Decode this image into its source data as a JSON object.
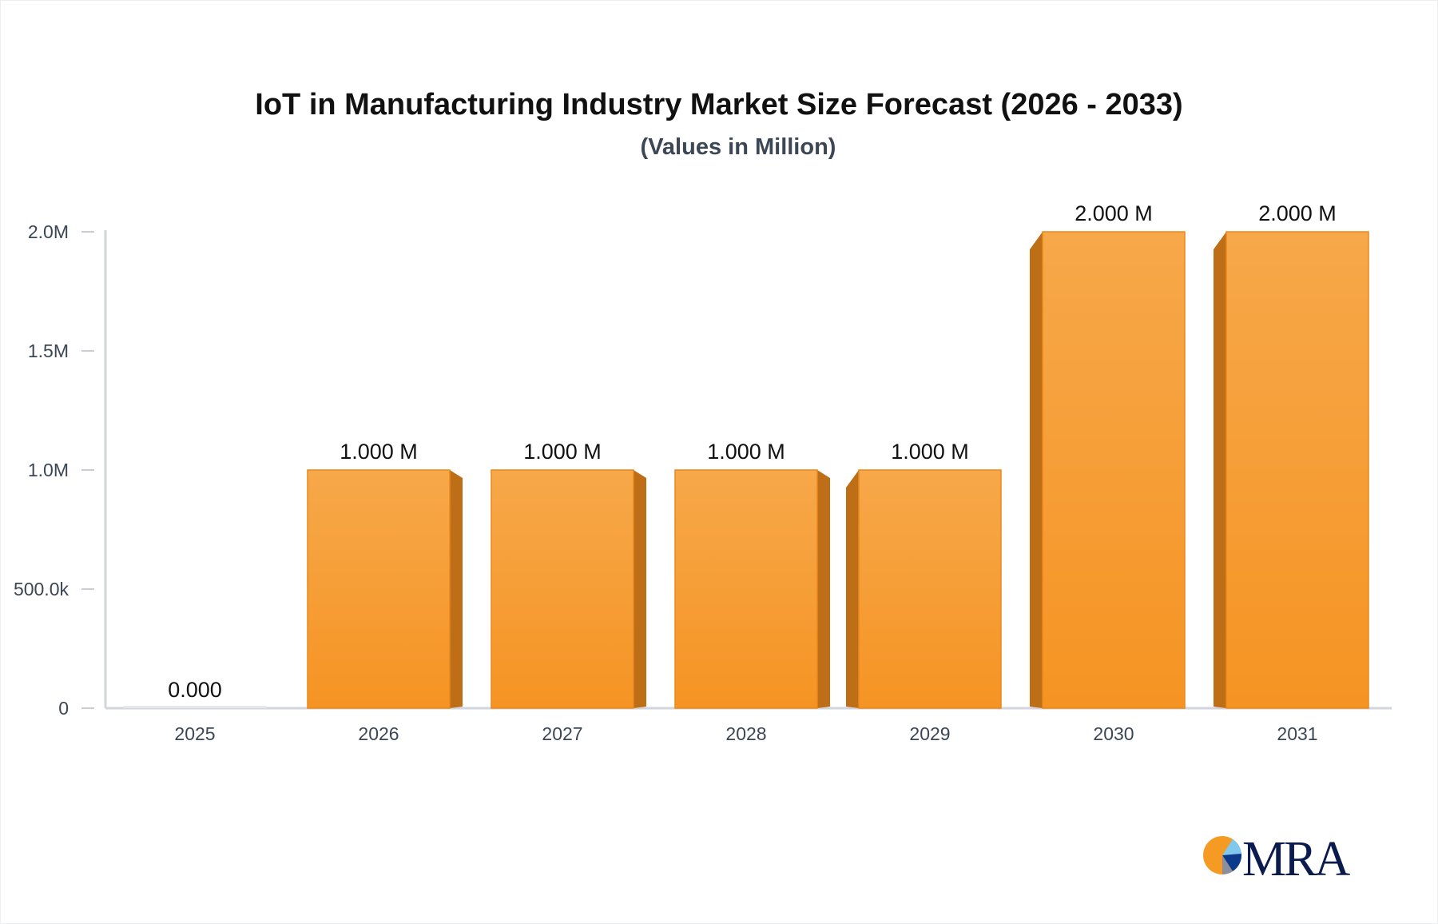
{
  "chart_data": {
    "type": "bar",
    "title": "IoT in Manufacturing Industry Market Size Forecast (2026 - 2033)",
    "subtitle": "(Values in Million)",
    "categories": [
      "2025",
      "2026",
      "2027",
      "2028",
      "2029",
      "2030",
      "2031"
    ],
    "values": [
      0,
      1000000,
      1000000,
      1000000,
      1000000,
      2000000,
      2000000
    ],
    "data_labels": [
      "0.000",
      "1.000 M",
      "1.000 M",
      "1.000 M",
      "1.000 M",
      "2.000 M",
      "2.000 M"
    ],
    "yticks": [
      0,
      500000,
      1000000,
      1500000,
      2000000
    ],
    "ytick_labels": [
      "0",
      "500.0k",
      "1.0M",
      "1.5M",
      "2.0M"
    ],
    "ylim": [
      0,
      2000000
    ],
    "xlabel": "",
    "ylabel": "",
    "grid": false,
    "bar_style": "3d",
    "colors": {
      "bar_top": "#f7a84a",
      "bar_bottom": "#f59423",
      "bar_side": "#bd6e17",
      "axis": "#d3d5dc"
    }
  },
  "logo": {
    "text": "MRA",
    "colors": {
      "orange": "#f59a23",
      "light_blue": "#7fc8ee",
      "navy": "#0b1b4d"
    }
  }
}
